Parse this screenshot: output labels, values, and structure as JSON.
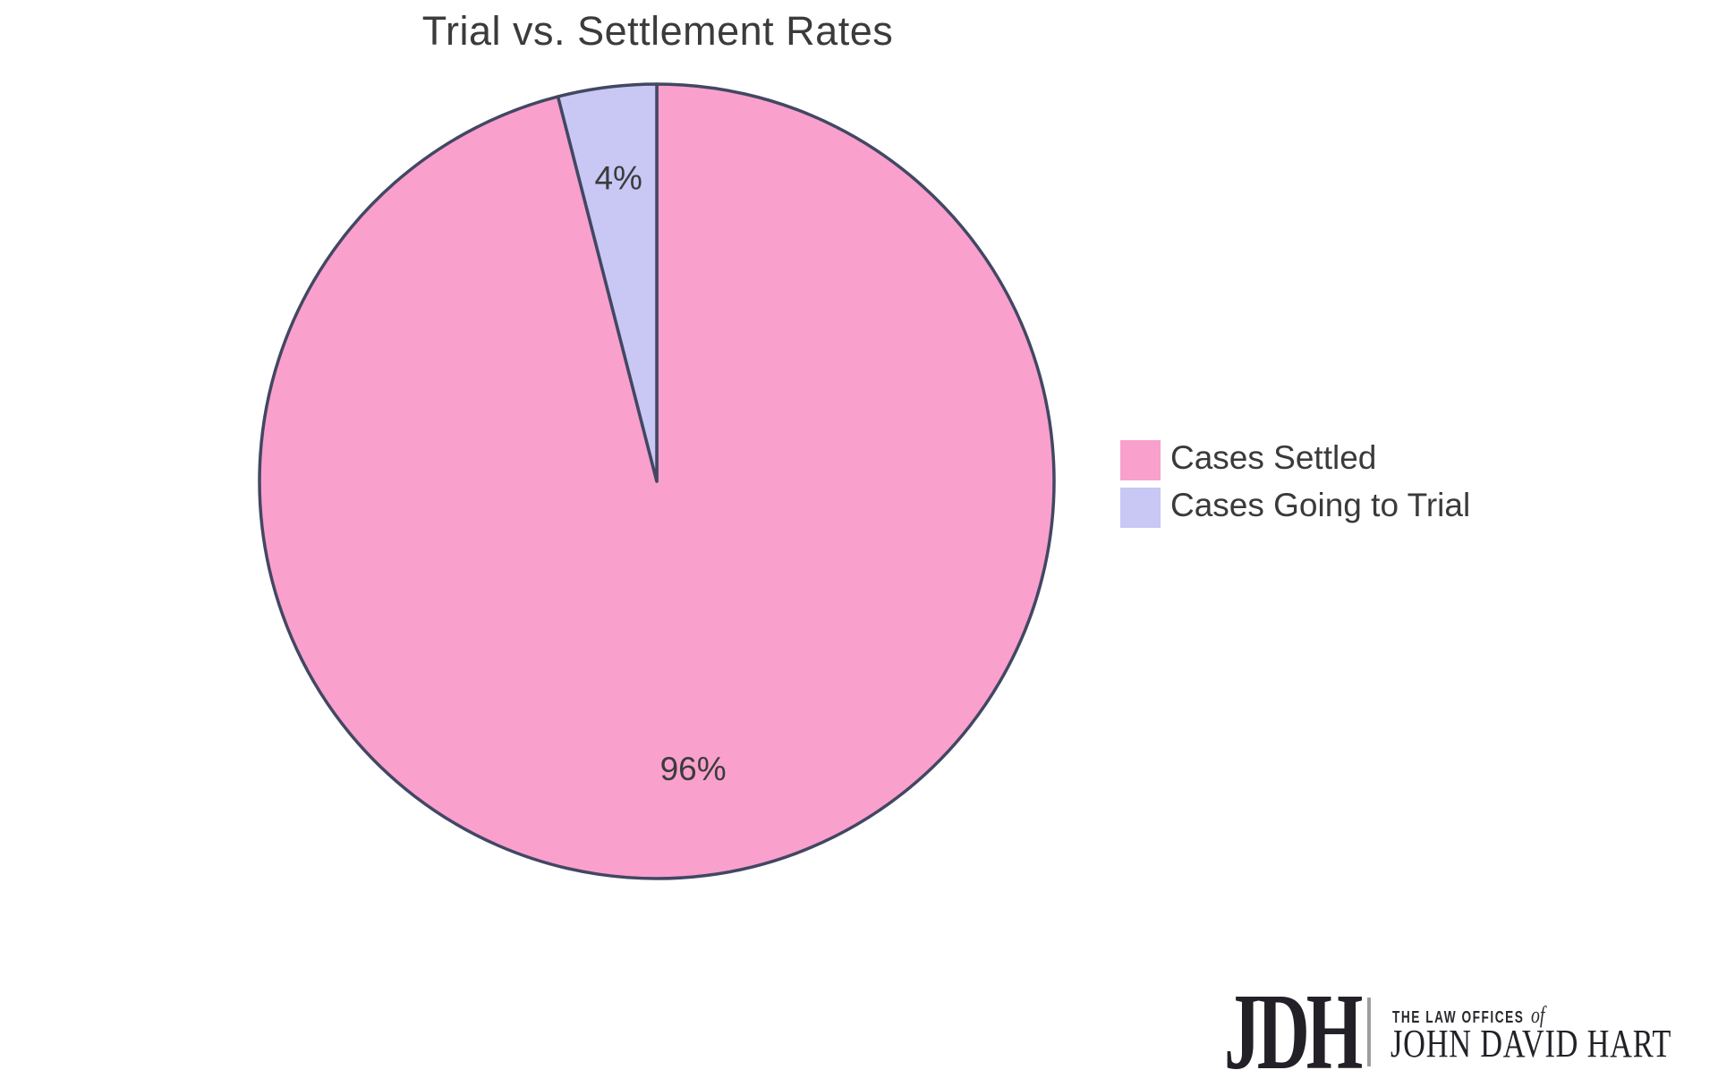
{
  "chart_data": {
    "type": "pie",
    "title": "Trial vs. Settlement Rates",
    "categories": [
      "Cases Settled",
      "Cases Going to Trial"
    ],
    "values": [
      96,
      4
    ],
    "unit": "%",
    "slices": [
      {
        "label": "Cases Settled",
        "value": 96,
        "display": "96%",
        "color": "#F9A0CC",
        "label_r_frac": 0.73
      },
      {
        "label": "Cases Going to Trial",
        "value": 4,
        "display": "4%",
        "color": "#C9C7F4",
        "label_r_frac": 0.77
      }
    ],
    "start_angle": "12 o'clock",
    "direction": "clockwise",
    "stroke_color": "#424763",
    "stroke_width": 3.5,
    "label_color": "#3B3B3B",
    "legend_position": "right",
    "background": "#FFFFFF"
  },
  "branding": {
    "monogram": "JDH",
    "tagline": "THE LAW OFFICES",
    "tagline_of": "of",
    "name": "JOHN DAVID HART"
  }
}
